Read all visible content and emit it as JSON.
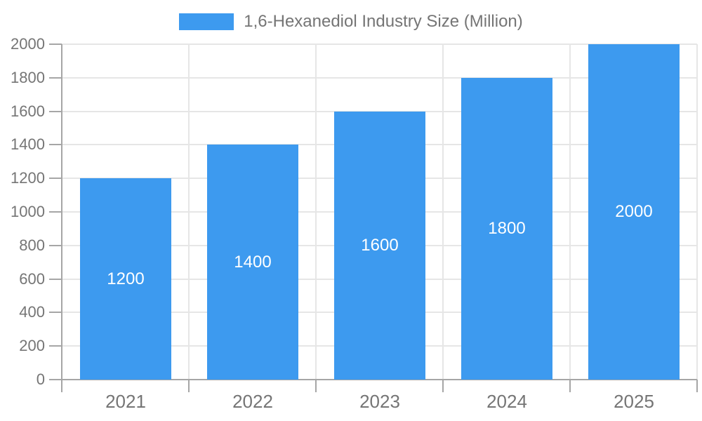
{
  "chart_data": {
    "type": "bar",
    "title": "",
    "legend": {
      "label": "1,6-Hexanediol Industry Size (Million)",
      "position": "top"
    },
    "categories": [
      "2021",
      "2022",
      "2023",
      "2024",
      "2025"
    ],
    "series": [
      {
        "name": "1,6-Hexanediol Industry Size (Million)",
        "values": [
          1200,
          1400,
          1600,
          1800,
          2000
        ]
      }
    ],
    "bar_labels": [
      "1200",
      "1400",
      "1600",
      "1800",
      "2000"
    ],
    "xlabel": "",
    "ylabel": "",
    "ylim": [
      0,
      2000
    ],
    "yticks": [
      0,
      200,
      400,
      600,
      800,
      1000,
      1200,
      1400,
      1600,
      1800,
      2000
    ],
    "grid": true,
    "legend_position": "top"
  },
  "colors": {
    "bar": "#3D9AEF",
    "grid": "#E6E6E6",
    "axis": "#A6A6A6",
    "text": "#757575",
    "bar_label": "#FFFFFF",
    "background": "#FFFFFF"
  }
}
